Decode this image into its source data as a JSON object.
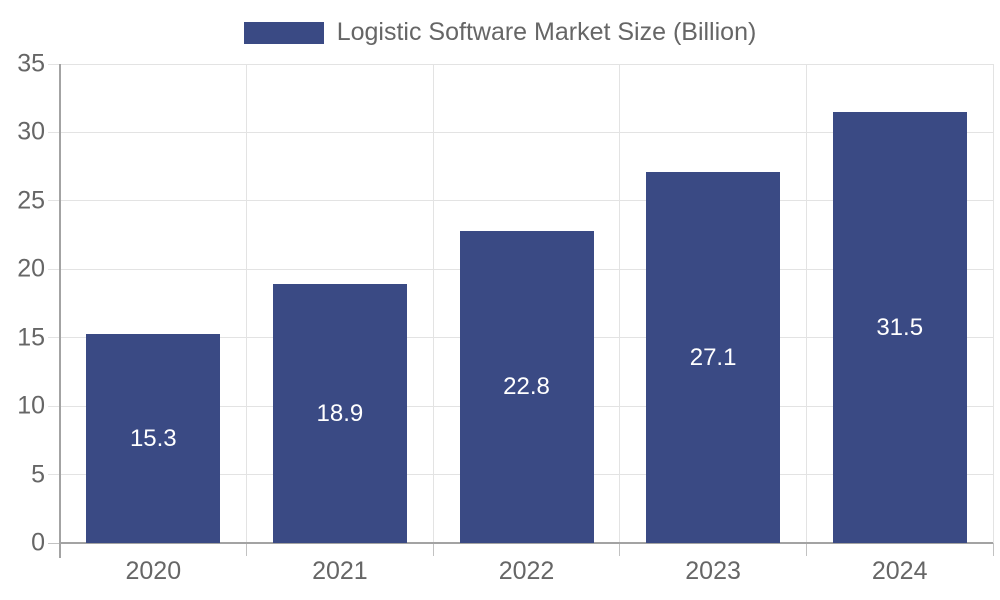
{
  "legend": {
    "label": "Logistic Software Market Size (Billion)"
  },
  "colors": {
    "bar": "#3A4A84",
    "gridline": "#E3E3E3",
    "axis_line": "#A3A3A3",
    "tick_mark": "#C2C2C2",
    "tick_label": "#666666",
    "legend_text": "#666666",
    "value_label": "#FFFFFF",
    "background": "#FFFFFF"
  },
  "chart_data": {
    "type": "bar",
    "categories": [
      "2020",
      "2021",
      "2022",
      "2023",
      "2024"
    ],
    "values": [
      15.3,
      18.9,
      22.8,
      27.1,
      31.5
    ],
    "series": [
      {
        "name": "Logistic Software Market Size (Billion)",
        "values": [
          15.3,
          18.9,
          22.8,
          27.1,
          31.5
        ]
      }
    ],
    "title": "",
    "xlabel": "",
    "ylabel": "",
    "ylim": [
      0,
      35
    ],
    "yticks": [
      0,
      5,
      10,
      15,
      20,
      25,
      30,
      35
    ],
    "grid": true,
    "legend_entries": [
      "Logistic Software Market Size (Billion)"
    ],
    "legend_position": "top-center",
    "bar_label_position": "inside-middle",
    "bar_width_fraction": 0.72
  }
}
